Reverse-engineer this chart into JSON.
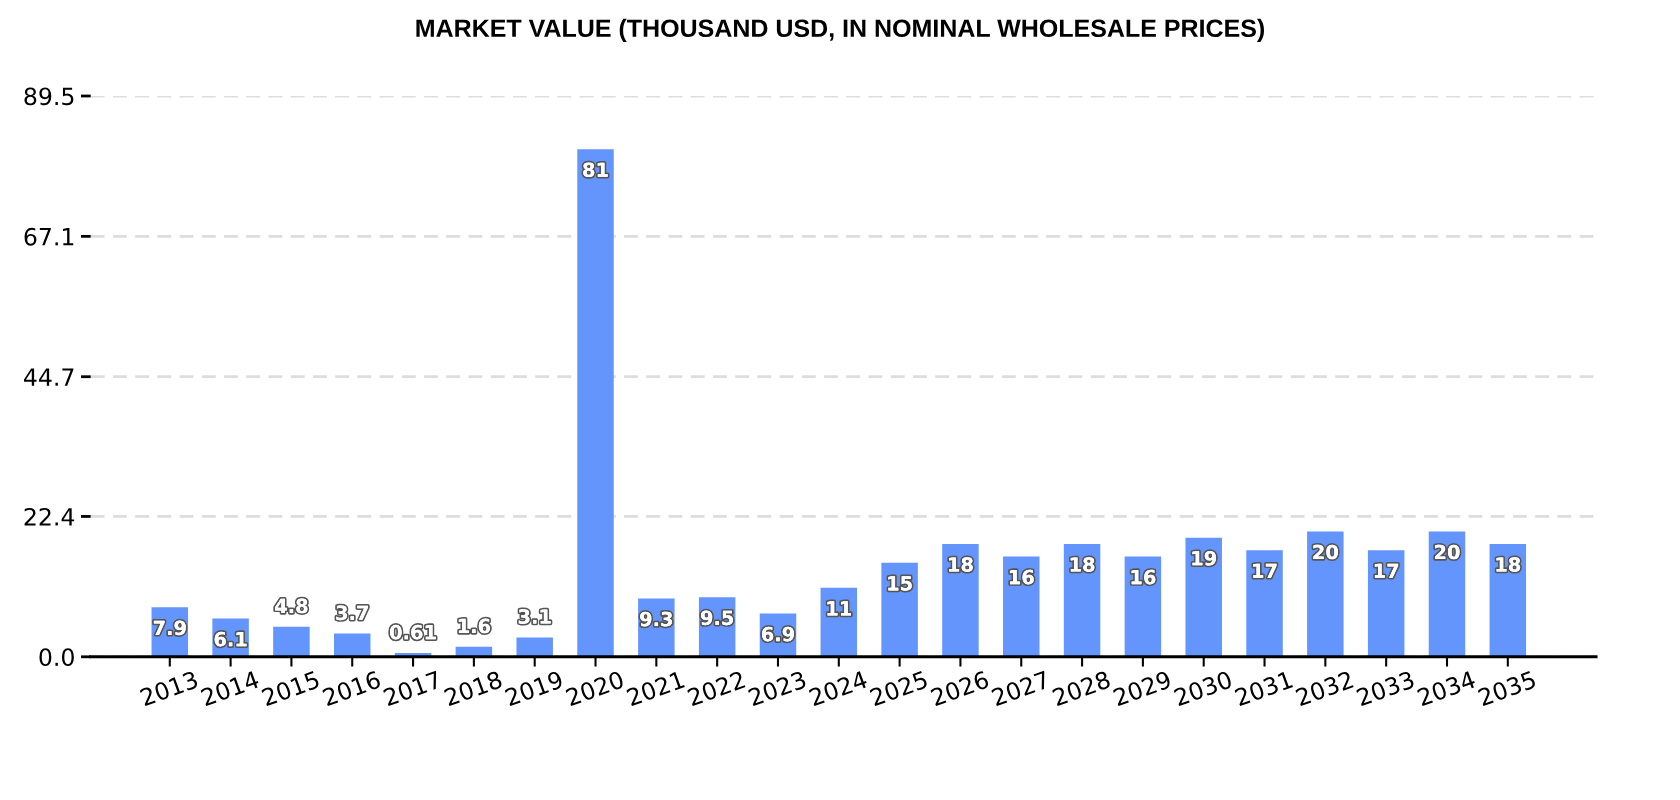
{
  "chart_data": {
    "type": "bar",
    "title": "MARKET VALUE (THOUSAND USD, IN NOMINAL WHOLESALE PRICES)",
    "categories": [
      "2013",
      "2014",
      "2015",
      "2016",
      "2017",
      "2018",
      "2019",
      "2020",
      "2021",
      "2022",
      "2023",
      "2024",
      "2025",
      "2026",
      "2027",
      "2028",
      "2029",
      "2030",
      "2031",
      "2032",
      "2033",
      "2034",
      "2035"
    ],
    "values": [
      7.9,
      6.1,
      4.8,
      3.7,
      0.61,
      1.6,
      3.1,
      81,
      9.3,
      9.5,
      6.9,
      11,
      15,
      18,
      16,
      18,
      16,
      19,
      17,
      20,
      17,
      20,
      18
    ],
    "color": "#6495fd",
    "ylim": [
      0,
      89.5
    ],
    "yticks": [
      {
        "value": 0,
        "label": "0.0"
      },
      22.4,
      44.7,
      67.1,
      89.5
    ],
    "grid": "y",
    "data_labels": true
  }
}
